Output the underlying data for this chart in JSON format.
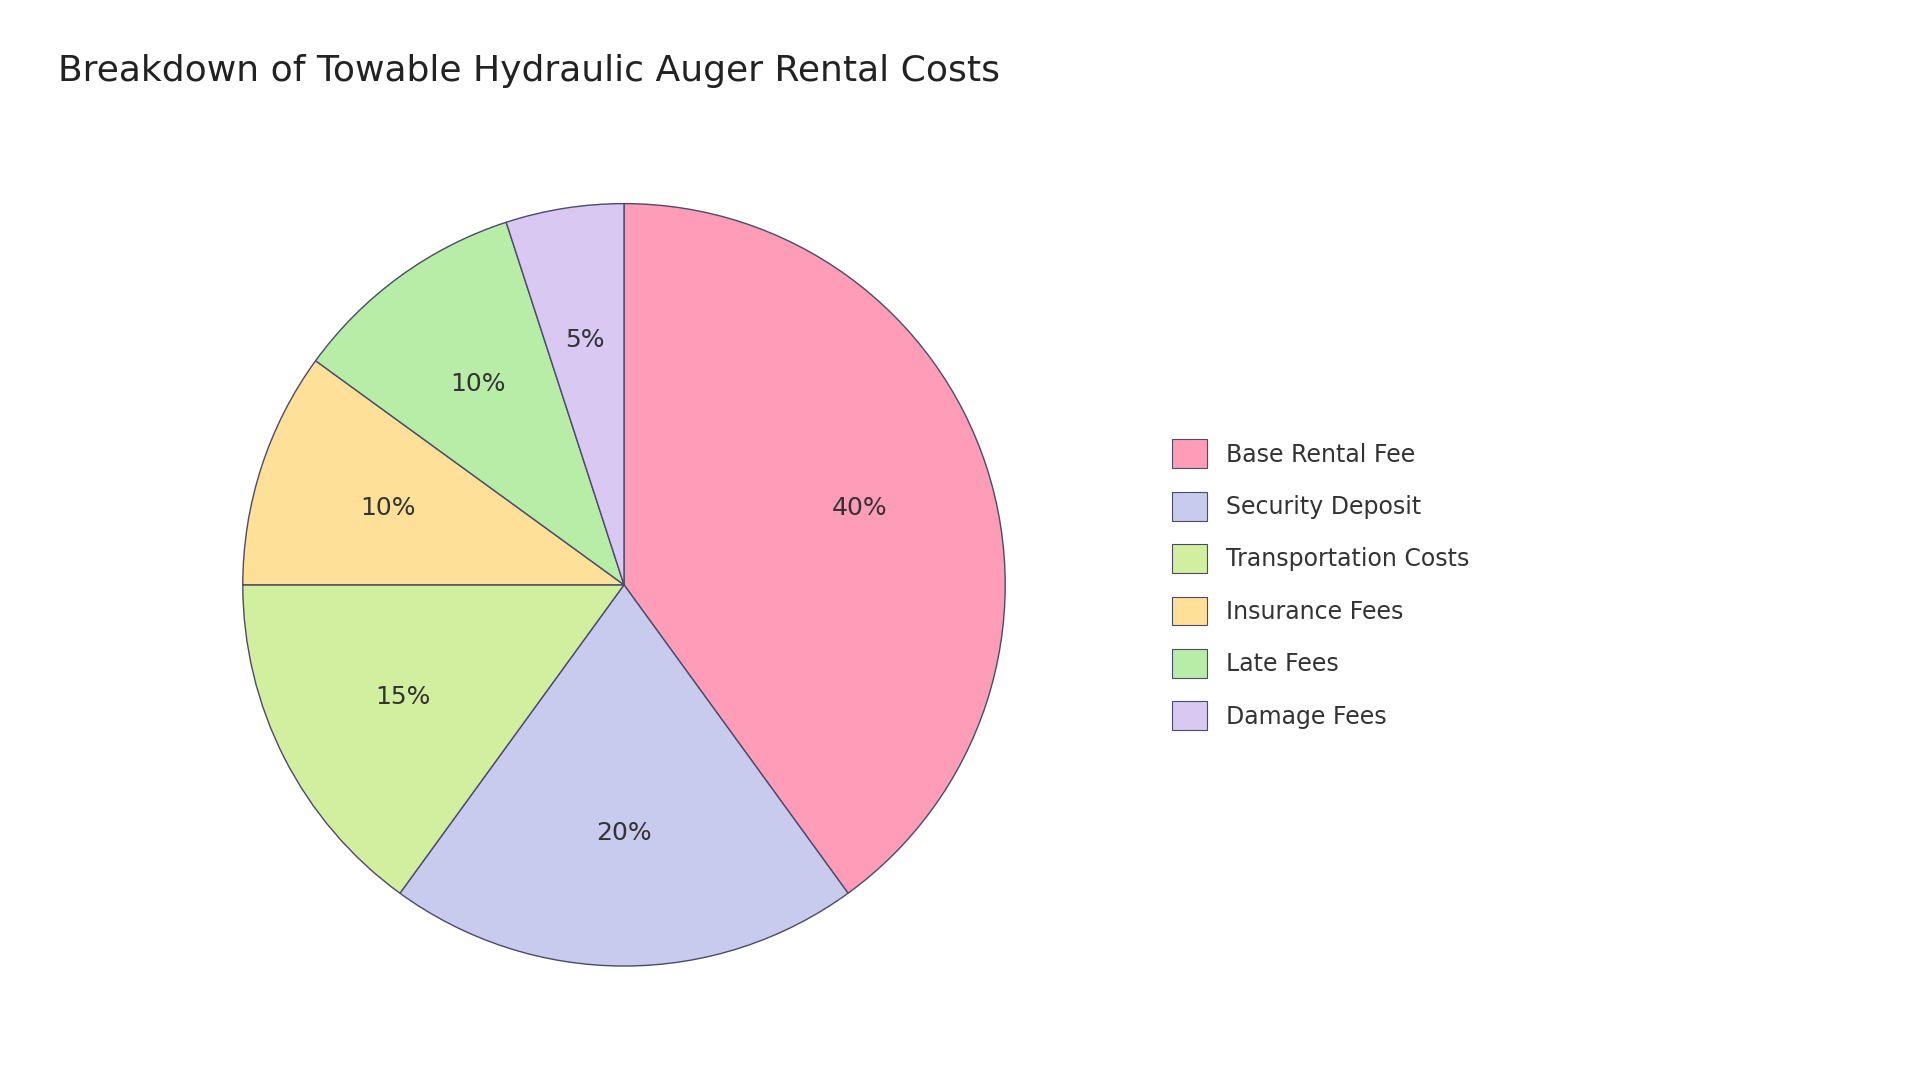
{
  "title": "Breakdown of Towable Hydraulic Auger Rental Costs",
  "labels": [
    "Base Rental Fee",
    "Security Deposit",
    "Transportation Costs",
    "Insurance Fees",
    "Late Fees",
    "Damage Fees"
  ],
  "values": [
    40,
    20,
    15,
    10,
    10,
    5
  ],
  "colors": [
    "#FF9DB8",
    "#C8CAEE",
    "#D2EFA0",
    "#FFE099",
    "#B8EDA8",
    "#D8C8F2"
  ],
  "edge_color": "#4a4a6a",
  "edge_width": 1.0,
  "startangle": 90,
  "background_color": "#ffffff",
  "title_fontsize": 26,
  "label_fontsize": 18,
  "legend_fontsize": 17
}
